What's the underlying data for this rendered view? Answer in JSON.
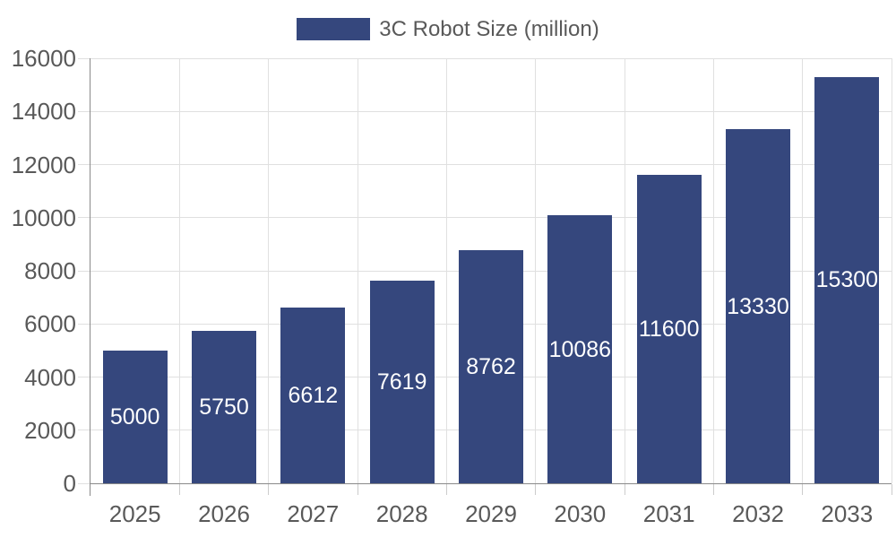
{
  "chart_data": {
    "type": "bar",
    "title": "3C Robot Size (million)",
    "legend_position": "top",
    "categories": [
      "2025",
      "2026",
      "2027",
      "2028",
      "2029",
      "2030",
      "2031",
      "2032",
      "2033"
    ],
    "values": [
      5000,
      5750,
      6612,
      7619,
      8762,
      10086,
      11600,
      13330,
      15300
    ],
    "xlabel": "",
    "ylabel": "",
    "ylim": [
      0,
      16000
    ],
    "yticks": [
      0,
      2000,
      4000,
      6000,
      8000,
      10000,
      12000,
      14000,
      16000
    ],
    "grid": true,
    "bar_color": "#35477D",
    "value_label_color": "#FFFFFF"
  },
  "styles": {
    "axis_label_color": "#595959",
    "gridline_color": "#E0E0E0",
    "tick_color": "#CCCCCC",
    "axis_line_color": "#8A8A8A"
  }
}
